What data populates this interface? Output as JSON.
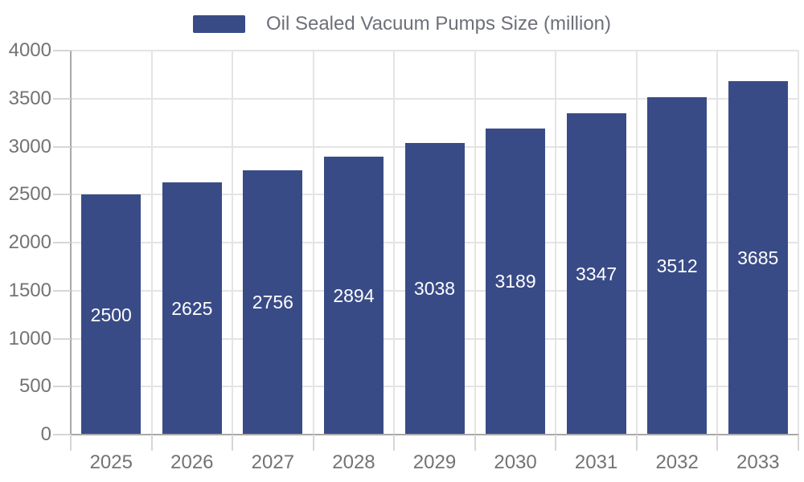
{
  "chart_data": {
    "type": "bar",
    "legend": "Oil Sealed Vacuum Pumps Size (million)",
    "legend_position": "top",
    "categories": [
      "2025",
      "2026",
      "2027",
      "2028",
      "2029",
      "2030",
      "2031",
      "2032",
      "2033"
    ],
    "series": [
      {
        "name": "Oil Sealed Vacuum Pumps Size (million)",
        "values": [
          2500,
          2625,
          2756,
          2894,
          3038,
          3189,
          3347,
          3512,
          3685
        ]
      }
    ],
    "value_labels_shown": true,
    "xlabel": "",
    "ylabel": "",
    "ylim": [
      0,
      4000
    ],
    "ytick_interval": 500,
    "ytick_labels": [
      "0",
      "500",
      "1000",
      "1500",
      "2000",
      "2500",
      "3000",
      "3500",
      "4000"
    ],
    "grid": true,
    "colors": {
      "bar": "#394B87",
      "grid_line": "#E4E4E4",
      "axis_line": "#A8A8A8",
      "tick_line": "#D6D6D6",
      "axis_label_text": "#737373",
      "legend_text": "#6E7079",
      "value_label_text": "#FFFFFF",
      "background": "#FFFFFF"
    }
  }
}
